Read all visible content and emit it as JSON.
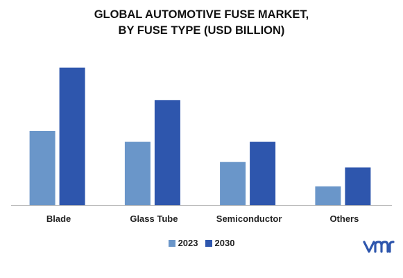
{
  "title_lines": [
    "GLOBAL AUTOMOTIVE FUSE MARKET,",
    "BY FUSE TYPE (USD BILLION)"
  ],
  "colors": {
    "series_2023": "#6a96c9",
    "series_2030": "#2e56ad",
    "axis": "#bbbbbb",
    "logo": "#2e56ad"
  },
  "logo_icon": "vmr-logo",
  "chart_data": {
    "type": "bar",
    "title": "GLOBAL AUTOMOTIVE FUSE MARKET, BY FUSE TYPE (USD BILLION)",
    "categories": [
      "Blade",
      "Glass Tube",
      "Semiconductor",
      "Others"
    ],
    "series": [
      {
        "name": "2023",
        "values": [
          5.5,
          4.7,
          3.2,
          1.4
        ]
      },
      {
        "name": "2030",
        "values": [
          10.2,
          7.8,
          4.7,
          2.8
        ]
      }
    ],
    "xlabel": "",
    "ylabel": "",
    "ylim": [
      0,
      11
    ],
    "grid": false,
    "legend": "bottom-center"
  }
}
